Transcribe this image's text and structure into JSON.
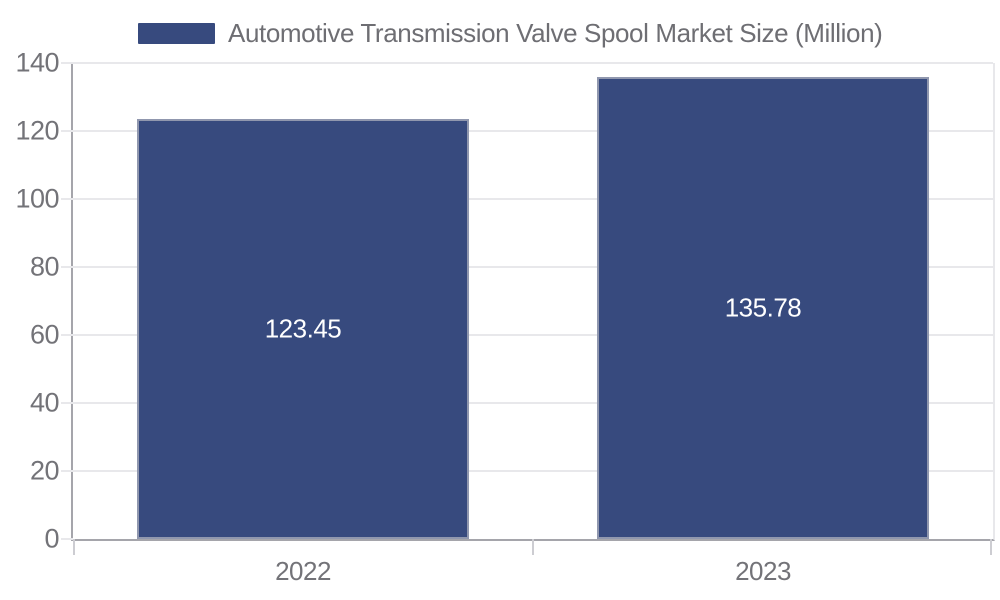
{
  "chart_data": {
    "type": "bar",
    "title": "Automotive Transmission Valve Spool Market Size (Million)",
    "categories": [
      "2022",
      "2023"
    ],
    "series": [
      {
        "name": "Automotive Transmission Valve Spool Market Size (Million)",
        "values": [
          123.45,
          135.78
        ],
        "value_labels": [
          "123.45",
          "135.78"
        ]
      }
    ],
    "xlabel": "",
    "ylabel": "",
    "ylim": [
      0,
      140
    ],
    "yticks": [
      0,
      20,
      40,
      60,
      80,
      100,
      120,
      140
    ],
    "grid": true,
    "legend_position": "top-center",
    "colors": {
      "bar_fill": "#374A7E",
      "bar_border": "#9097AE",
      "axis_line": "#A5A5AB",
      "grid_line": "#E8E8EB",
      "x_tick": "#CDCDD2",
      "axis_label": "#737378",
      "legend_text": "#6E6E73",
      "value_label": "#FFFFFF",
      "background": "#FFFFFF"
    }
  }
}
